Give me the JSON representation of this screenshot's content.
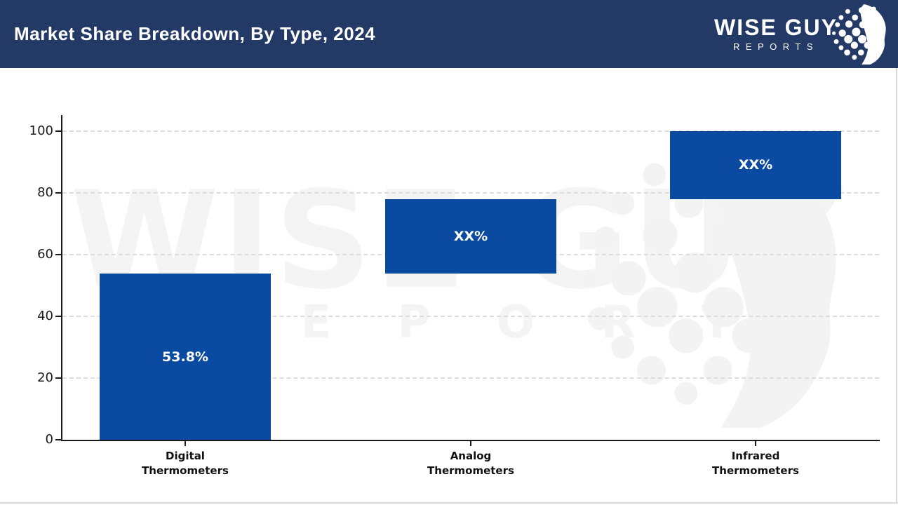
{
  "header": {
    "title": "Market Share Breakdown, By Type, 2024",
    "logo": {
      "wordmark": "WISE GUY",
      "subtext": "REPORTS"
    }
  },
  "watermark": {
    "wordmark": "WISE GUY",
    "subtext": "R E P O R T S"
  },
  "chart_data": {
    "type": "bar",
    "subtype": "waterfall",
    "title": "Market Share Breakdown, By Type, 2024",
    "unit": "%",
    "categories": [
      "Digital Thermometers",
      "Analog Thermometers",
      "Infrared Thermometers"
    ],
    "bars": [
      {
        "category": "Digital Thermometers",
        "start": 0,
        "end": 53.8,
        "label": "53.8%"
      },
      {
        "category": "Analog Thermometers",
        "start": 53.8,
        "end": 78,
        "label": "XX%"
      },
      {
        "category": "Infrared Thermometers",
        "start": 78,
        "end": 100,
        "label": "XX%"
      }
    ],
    "ylim": [
      0,
      100
    ],
    "yticks": [
      0,
      20,
      40,
      60,
      80,
      100
    ],
    "xlabel": "",
    "ylabel": "",
    "grid": "horizontal dashed",
    "legend": "none",
    "bar_color": "#0b4aa1",
    "bar_label_color": "#ffffff"
  },
  "colors": {
    "header_bg": "#243a66",
    "header_text": "#ffffff",
    "bar_fill": "#0b4aa1",
    "axis": "#1a1a1a",
    "grid": "#dcdcdc",
    "tick_label": "#1a1a1a",
    "watermark": "#f4f4f4",
    "page_bg": "#ffffff",
    "edge_line": "#d9d9d9"
  }
}
